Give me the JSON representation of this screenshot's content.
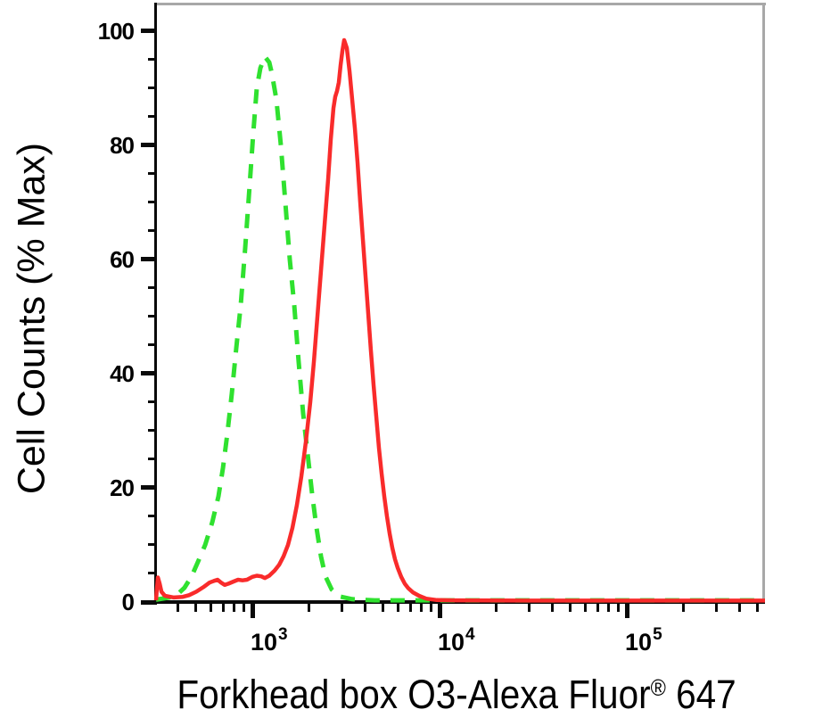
{
  "figure": {
    "y_axis_title": "Cell Counts (% Max)",
    "x_axis_title": {
      "text": "Forkhead box O3-Alexa Fluor® 647",
      "prefix": "Forkhead box O3-Alexa Fluor",
      "registered_mark": "®",
      "suffix": " 647"
    }
  },
  "colors": {
    "red_curve": "#f92b2b",
    "green_curve": "#2fe12f",
    "axis": "#0a0a0a",
    "frame_gray": "#a8a8a8",
    "background": "#ffffff"
  },
  "chart_data": {
    "type": "line",
    "subtype": "flow-cytometry-overlay-histogram",
    "title": "",
    "xlabel": "Forkhead box O3-Alexa Fluor® 647",
    "ylabel": "Cell Counts (% Max)",
    "x_scale": "log10",
    "grid": false,
    "legend_position": "none",
    "x_range": [
      306,
      547000
    ],
    "y_range": [
      0,
      104.8
    ],
    "x_major_ticks": [
      {
        "value": 1000,
        "base": "10",
        "exp": "3"
      },
      {
        "value": 10000,
        "base": "10",
        "exp": "4"
      },
      {
        "value": 100000,
        "base": "10",
        "exp": "5"
      }
    ],
    "x_minor_ticks": [
      400,
      500,
      600,
      700,
      800,
      900,
      2000,
      3000,
      4000,
      5000,
      6000,
      7000,
      8000,
      9000,
      20000,
      30000,
      40000,
      50000,
      60000,
      70000,
      80000,
      90000,
      200000,
      300000,
      400000,
      500000
    ],
    "y_major_ticks": [
      {
        "value": 0,
        "label": "0"
      },
      {
        "value": 20,
        "label": "20"
      },
      {
        "value": 40,
        "label": "40"
      },
      {
        "value": 60,
        "label": "60"
      },
      {
        "value": 80,
        "label": "80"
      },
      {
        "value": 100,
        "label": "100"
      }
    ],
    "y_minor_ticks": [
      5,
      10,
      15,
      25,
      30,
      35,
      45,
      50,
      55,
      65,
      70,
      75,
      85,
      90,
      95
    ],
    "series": [
      {
        "name": "green-dashed-curve",
        "description": "isotype control histogram, dashed",
        "color": "#2fe12f",
        "style": "dashed",
        "stroke_width": 5,
        "peak": {
          "x": 1166,
          "y_pct": 95.5
        },
        "points": [
          [
            306,
            0.4
          ],
          [
            361,
            0.8
          ],
          [
            403,
            1.5
          ],
          [
            434,
            2.5
          ],
          [
            474,
            4.5
          ],
          [
            512,
            7
          ],
          [
            560,
            10
          ],
          [
            611,
            14
          ],
          [
            659,
            18.5
          ],
          [
            697,
            23.5
          ],
          [
            736,
            29.5
          ],
          [
            777,
            36.5
          ],
          [
            821,
            44.5
          ],
          [
            867,
            52
          ],
          [
            916,
            62
          ],
          [
            968,
            73
          ],
          [
            1011,
            82
          ],
          [
            1056,
            90
          ],
          [
            1104,
            93.5
          ],
          [
            1166,
            95.5
          ],
          [
            1232,
            94.5
          ],
          [
            1273,
            92.5
          ],
          [
            1345,
            88
          ],
          [
            1420,
            80
          ],
          [
            1500,
            70
          ],
          [
            1585,
            60
          ],
          [
            1674,
            52
          ],
          [
            1768,
            42
          ],
          [
            1868,
            33
          ],
          [
            1973,
            26
          ],
          [
            2084,
            19
          ],
          [
            2202,
            13
          ],
          [
            2326,
            8
          ],
          [
            2457,
            4.5
          ],
          [
            2653,
            2.2
          ],
          [
            2897,
            1
          ],
          [
            3414,
            0.5
          ],
          [
            4490,
            0.3
          ],
          [
            10000,
            0.3
          ],
          [
            50000,
            0.3
          ],
          [
            200000,
            0.3
          ],
          [
            547000,
            0.3
          ]
        ]
      },
      {
        "name": "red-solid-curve",
        "description": "Forkhead box O3 stained histogram, solid",
        "color": "#f92b2b",
        "style": "solid",
        "stroke_width": 4.5,
        "peak": {
          "x": 3094,
          "y_pct": 98.4
        },
        "points": [
          [
            306,
            0.3
          ],
          [
            309,
            2.2
          ],
          [
            313,
            4.3
          ],
          [
            320,
            3.2
          ],
          [
            327,
            1.8
          ],
          [
            341,
            1.1
          ],
          [
            381,
            0.8
          ],
          [
            425,
            0.9
          ],
          [
            459,
            1.2
          ],
          [
            501,
            1.8
          ],
          [
            547,
            2.6
          ],
          [
            591,
            3.4
          ],
          [
            624,
            3.7
          ],
          [
            652,
            3.9
          ],
          [
            681,
            3.4
          ],
          [
            711,
            3.0
          ],
          [
            744,
            3.2
          ],
          [
            794,
            3.6
          ],
          [
            839,
            3.9
          ],
          [
            886,
            3.8
          ],
          [
            936,
            3.9
          ],
          [
            1000,
            4.4
          ],
          [
            1056,
            4.6
          ],
          [
            1116,
            4.5
          ],
          [
            1166,
            4.2
          ],
          [
            1232,
            4.6
          ],
          [
            1316,
            5.5
          ],
          [
            1389,
            6.5
          ],
          [
            1468,
            8
          ],
          [
            1550,
            10
          ],
          [
            1638,
            13
          ],
          [
            1730,
            17
          ],
          [
            1828,
            22
          ],
          [
            1930,
            28
          ],
          [
            2039,
            35
          ],
          [
            2131,
            42
          ],
          [
            2227,
            50
          ],
          [
            2326,
            58
          ],
          [
            2431,
            66
          ],
          [
            2540,
            74
          ],
          [
            2624,
            81
          ],
          [
            2712,
            86.5
          ],
          [
            2772,
            88.5
          ],
          [
            2834,
            89.5
          ],
          [
            2897,
            91
          ],
          [
            2961,
            94
          ],
          [
            3027,
            96.5
          ],
          [
            3094,
            98.4
          ],
          [
            3198,
            97
          ],
          [
            3304,
            93
          ],
          [
            3414,
            88
          ],
          [
            3528,
            83
          ],
          [
            3646,
            77
          ],
          [
            3768,
            70
          ],
          [
            3894,
            63.5
          ],
          [
            4024,
            57
          ],
          [
            4159,
            50.5
          ],
          [
            4298,
            44
          ],
          [
            4441,
            38
          ],
          [
            4590,
            32.5
          ],
          [
            4744,
            27
          ],
          [
            4902,
            22.5
          ],
          [
            5066,
            18.5
          ],
          [
            5235,
            15
          ],
          [
            5411,
            12
          ],
          [
            5592,
            9.5
          ],
          [
            5780,
            7.5
          ],
          [
            5973,
            6
          ],
          [
            6240,
            4.4
          ],
          [
            6521,
            3.2
          ],
          [
            6813,
            2.4
          ],
          [
            7196,
            1.7
          ],
          [
            7770,
            1.1
          ],
          [
            8483,
            0.6
          ],
          [
            9676,
            0.35
          ],
          [
            12050,
            0.3
          ],
          [
            30000,
            0.25
          ],
          [
            100000,
            0.25
          ],
          [
            300000,
            0.25
          ],
          [
            547000,
            0.25
          ]
        ]
      }
    ]
  }
}
